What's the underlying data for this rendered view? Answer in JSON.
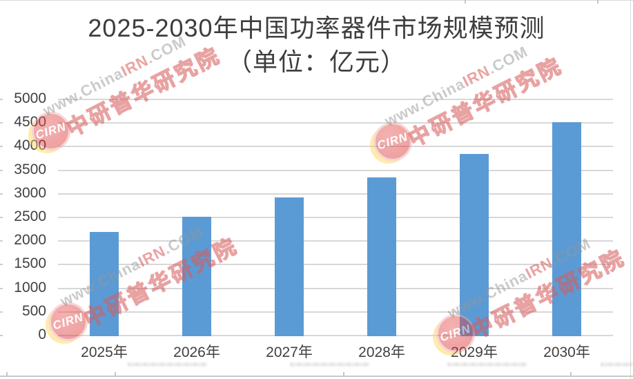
{
  "title": {
    "line1": "2025-2030年中国功率器件市场规模预测",
    "line2": "（单位：亿元）"
  },
  "chart_data": {
    "type": "bar",
    "title": "2025-2030年中国功率器件市场规模预测（单位：亿元）",
    "categories": [
      "2025年",
      "2026年",
      "2027年",
      "2028年",
      "2029年",
      "2030年"
    ],
    "values": [
      2200,
      2520,
      2920,
      3340,
      3830,
      4500
    ],
    "xlabel": "",
    "ylabel": "",
    "ylim": [
      0,
      5000
    ],
    "yticks": [
      5000,
      4500,
      4000,
      3500,
      3000,
      2500,
      2000,
      1500,
      1000,
      500,
      0
    ],
    "grid": true,
    "legend": "none",
    "bar_color": "#5B9BD5",
    "gridline_color": "#D7D7D7",
    "axis_label_color": "#404040",
    "title_color": "#3D3D3D",
    "background_color": "#FFFFFF"
  },
  "watermark": {
    "logo_text": "CIRN",
    "url_prefix": "www.China",
    "url_mid": "IRN",
    "url_suffix": ".COM",
    "cn_text": "中研普华研究院",
    "colors": {
      "logo_red": "#DC2F2F",
      "logo_yellow": "#FFD34D",
      "url_gray": "#969696",
      "accent_red": "#D64545"
    }
  }
}
